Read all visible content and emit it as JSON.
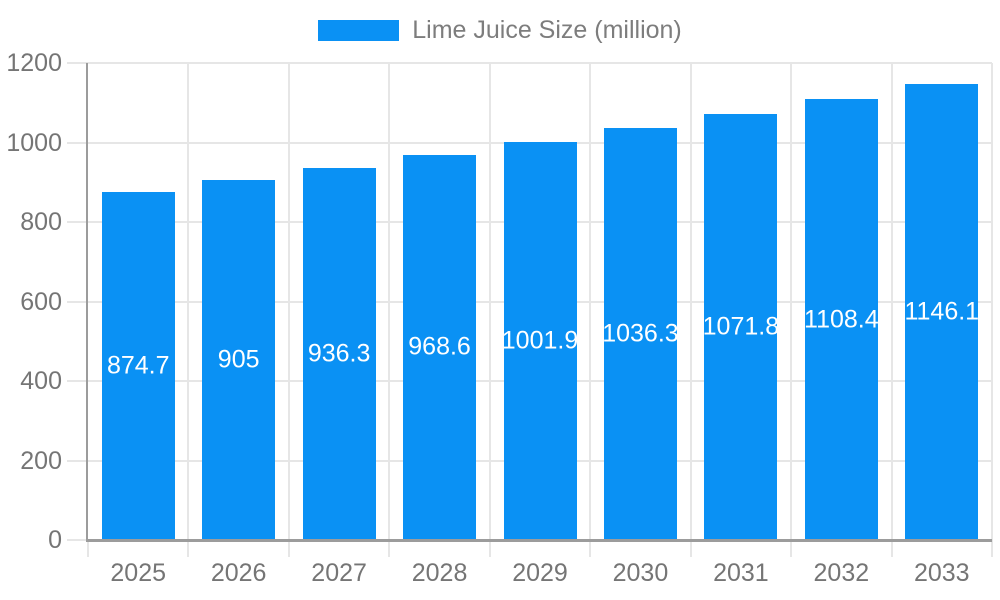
{
  "chart_data": {
    "type": "bar",
    "categories": [
      "2025",
      "2026",
      "2027",
      "2028",
      "2029",
      "2030",
      "2031",
      "2032",
      "2033"
    ],
    "series": [
      {
        "name": "Lime Juice Size (million)",
        "values": [
          874.7,
          905,
          936.3,
          968.6,
          1001.9,
          1036.3,
          1071.8,
          1108.4,
          1146.1
        ]
      }
    ],
    "yticks": [
      0,
      200,
      400,
      600,
      800,
      1000,
      1200
    ],
    "ylim": [
      0,
      1200
    ],
    "xlabel": "",
    "ylabel": "",
    "grid": true,
    "legend_position": "top",
    "value_labels_shown": true
  },
  "colors": {
    "bar": "#0a91f4",
    "grid": "#e6e6e6",
    "axis_line": "#9c9c9c",
    "axis_text": "#757575",
    "legend_text": "#7d7d7d",
    "value_text": "#ffffff",
    "background": "#ffffff"
  }
}
